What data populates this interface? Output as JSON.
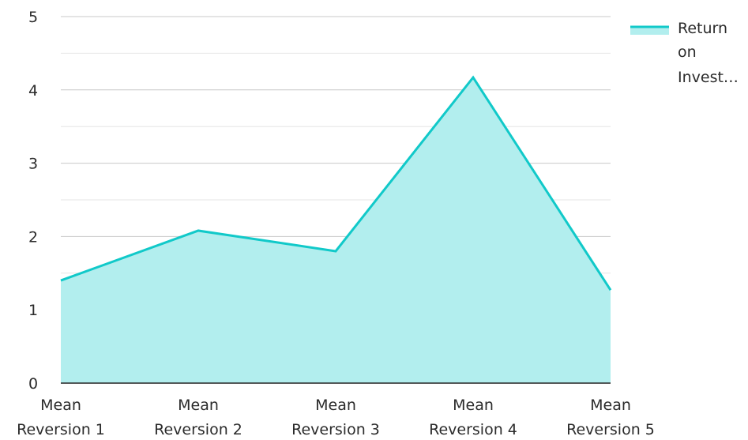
{
  "chart_data": {
    "type": "area",
    "title": "",
    "xlabel": "",
    "ylabel": "",
    "categories": [
      "Mean Reversion 1",
      "Mean Reversion 2",
      "Mean Reversion 3",
      "Mean Reversion 4",
      "Mean Reversion 5"
    ],
    "category_lines": [
      [
        "Mean",
        "Reversion 1"
      ],
      [
        "Mean",
        "Reversion 2"
      ],
      [
        "Mean",
        "Reversion 3"
      ],
      [
        "Mean",
        "Reversion 4"
      ],
      [
        "Mean",
        "Reversion 5"
      ]
    ],
    "series": [
      {
        "name": "Return on Investment",
        "values": [
          1.4,
          2.08,
          1.8,
          4.17,
          1.27
        ]
      }
    ],
    "ylim": [
      0,
      5
    ],
    "yticks": [
      "0",
      "1",
      "2",
      "3",
      "4",
      "5"
    ],
    "grid": true,
    "legend": {
      "position": "top-right",
      "lines": [
        "Return",
        "on",
        "Invest…"
      ]
    },
    "colors": {
      "line": "#11c9c9",
      "fill": "#b2eeee",
      "grid_major": "#c8c8c8",
      "grid_minor": "#e6e6e6",
      "axis": "#222222"
    }
  }
}
